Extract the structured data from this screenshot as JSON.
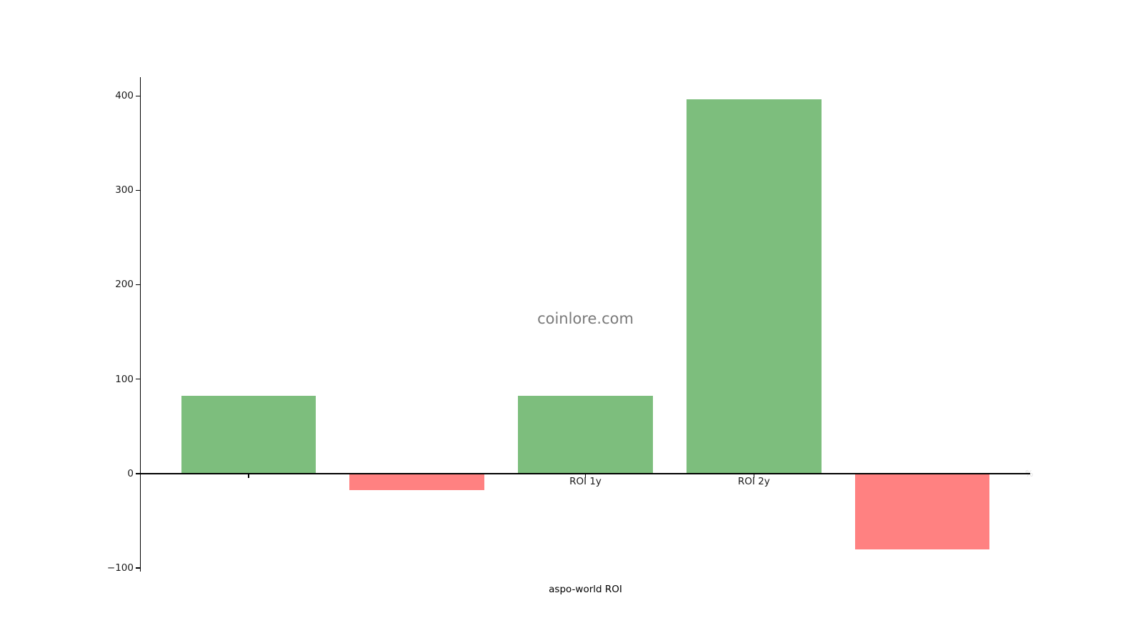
{
  "watermark": {
    "text": "coinlore.com",
    "color": "#7a7a7a"
  },
  "xlabel": "aspo-world ROI",
  "axis_end_symbol": "%",
  "colors": {
    "positive_bar": "#7dbe7d",
    "negative_bar": "#ff8181",
    "axis": "#000000",
    "tick_label": "#1a1a1a"
  },
  "chart_data": {
    "type": "bar",
    "title": "",
    "xlabel": "aspo-world ROI",
    "ylabel": "",
    "categories": [
      "",
      "",
      "ROI 1y",
      "ROI 2y",
      ""
    ],
    "values": [
      82,
      -17,
      82,
      396,
      -80
    ],
    "bar_colors": [
      "#7dbe7d",
      "#ff8181",
      "#7dbe7d",
      "#7dbe7d",
      "#ff8181"
    ],
    "yticks": [
      -100,
      0,
      100,
      200,
      300,
      400
    ],
    "ylim": [
      -103.8,
      419.8
    ],
    "xlim": [
      -0.64,
      4.64
    ],
    "bar_width": 0.8,
    "grid": false,
    "legend": null,
    "watermark_text": "coinlore.com"
  }
}
